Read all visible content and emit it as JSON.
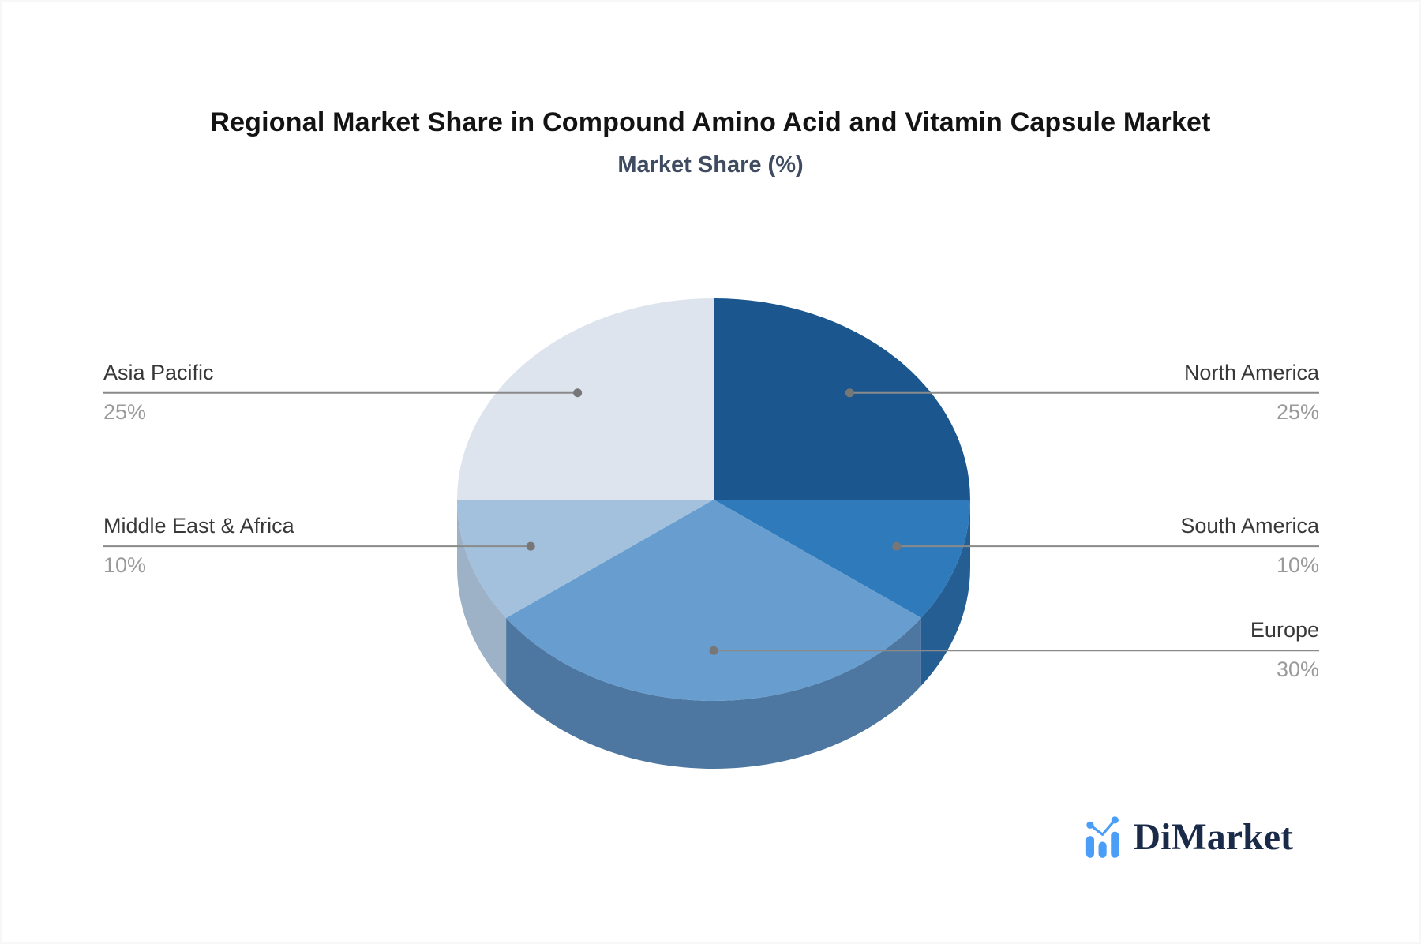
{
  "chart_data": {
    "type": "pie",
    "style": "3d-pie",
    "title": "Regional Market Share in Compound Amino Acid and Vitamin Capsule Market",
    "subtitle": "Market Share (%)",
    "unit": "%",
    "legend_position": "callout-labels-left-right",
    "start_angle_deg": 0,
    "clockwise": true,
    "segments": [
      {
        "label": "North America",
        "value": 25,
        "display": "25%",
        "color": "#1B578E",
        "side_color": "#14436F"
      },
      {
        "label": "South America",
        "value": 10,
        "display": "10%",
        "color": "#2F7ABB",
        "side_color": "#255E93"
      },
      {
        "label": "Europe",
        "value": 30,
        "display": "30%",
        "color": "#689DCF",
        "side_color": "#4D77A0"
      },
      {
        "label": "Middle East & Africa",
        "value": 10,
        "display": "10%",
        "color": "#A3C1DD",
        "side_color": "#9DB2C6"
      },
      {
        "label": "Asia Pacific",
        "value": 25,
        "display": "25%",
        "color": "#DEE4EE",
        "side_color": "#C9D3DF"
      }
    ],
    "colors": {
      "leader_line": "#8A8A8A",
      "anchor_dot": "#777777",
      "label_text": "#383838",
      "value_text": "#9A9A9A",
      "title_text": "#131313",
      "subtitle_text": "#3E4B61"
    }
  },
  "brand": {
    "name": "DiMarket",
    "logo_icon": "mini-bar-line-chart-icon",
    "icon_color": "#4A9EF7",
    "text_color": "#1A2B49"
  }
}
